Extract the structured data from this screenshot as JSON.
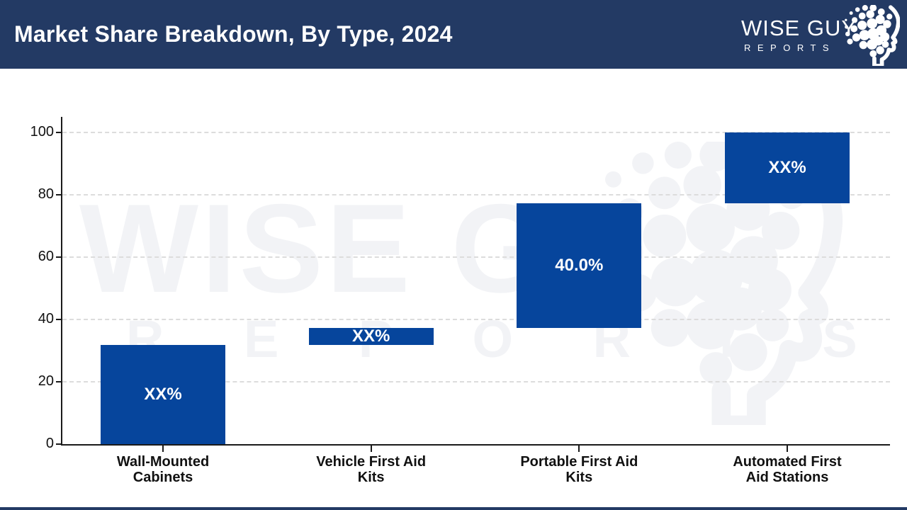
{
  "header": {
    "title": "Market Share Breakdown, By Type, 2024",
    "bg_color": "#233a64",
    "logo": {
      "line1": "WISE GUY",
      "line2": "REPORTS"
    }
  },
  "watermark": {
    "line1": "WISE GU",
    "line2": "R E P O R T S"
  },
  "footer": {
    "bg_color": "#233a64"
  },
  "chart_data": {
    "type": "bar",
    "subtype": "waterfall",
    "title": "Market Share Breakdown, By Type, 2024",
    "bar_color": "#06459c",
    "grid": "horizontal dashed",
    "ylim": [
      0,
      105
    ],
    "y_ticks": [
      0,
      20,
      40,
      60,
      80,
      100
    ],
    "categories": [
      "Wall-Mounted Cabinets",
      "Vehicle First Aid Kits",
      "Portable First Aid Kits",
      "Automated First Aid Stations"
    ],
    "segments": [
      {
        "category": "Wall-Mounted Cabinets",
        "label_lines": [
          "Wall-Mounted",
          "Cabinets"
        ],
        "start": 0,
        "end": 31.8,
        "value": 31.8,
        "value_label": "XX%"
      },
      {
        "category": "Vehicle First Aid Kits",
        "label_lines": [
          "Vehicle First Aid",
          "Kits"
        ],
        "start": 31.8,
        "end": 37.3,
        "value": 5.5,
        "value_label": "XX%"
      },
      {
        "category": "Portable First Aid Kits",
        "label_lines": [
          "Portable First Aid",
          "Kits"
        ],
        "start": 37.3,
        "end": 77.3,
        "value": 40.0,
        "value_label": "40.0%"
      },
      {
        "category": "Automated First Aid Stations",
        "label_lines": [
          "Automated First",
          "Aid Stations"
        ],
        "start": 77.3,
        "end": 100,
        "value": 22.7,
        "value_label": "XX%"
      }
    ]
  }
}
